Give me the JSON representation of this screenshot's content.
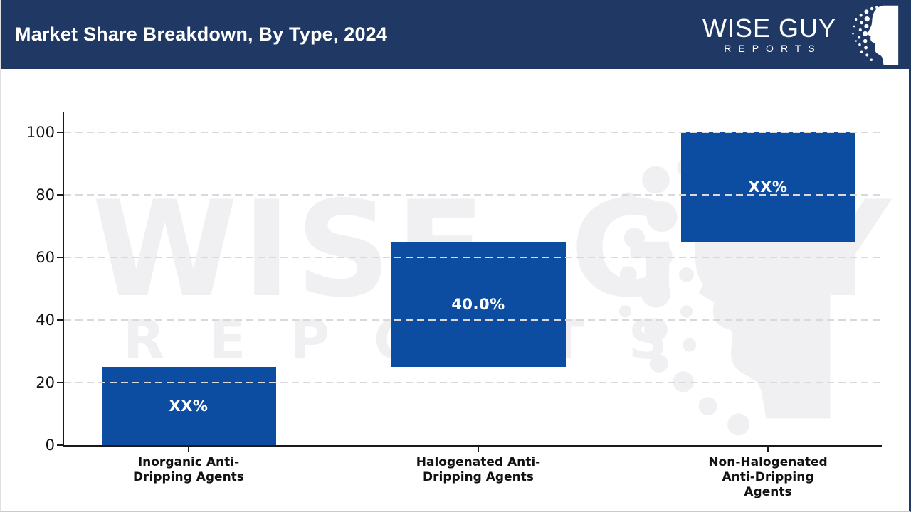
{
  "header": {
    "title": "Market Share Breakdown, By Type, 2024",
    "logo": {
      "line1": "WISE GUY",
      "line2": "REPORTS"
    }
  },
  "watermark": {
    "line1": "WISE GUY",
    "line2": "REPORTS"
  },
  "chart_data": {
    "type": "bar",
    "subtype": "floating-segment-waterfall",
    "title": "Market Share Breakdown, By Type, 2024",
    "categories": [
      "Inorganic Anti-\nDripping Agents",
      "Halogenated Anti-\nDripping Agents",
      "Non-Halogenated\nAnti-Dripping\nAgents"
    ],
    "segments": [
      {
        "category": "Inorganic Anti-Dripping Agents",
        "start": 0,
        "end": 25,
        "label": "XX%"
      },
      {
        "category": "Halogenated Anti-Dripping Agents",
        "start": 25,
        "end": 65,
        "label": "40.0%"
      },
      {
        "category": "Non-Halogenated Anti-Dripping Agents",
        "start": 65,
        "end": 100,
        "label": "XX%"
      }
    ],
    "ylim": [
      0,
      100
    ],
    "yticks": [
      0,
      20,
      40,
      60,
      80,
      100
    ],
    "xlabel": "",
    "ylabel": "",
    "grid": "dashed-horizontal",
    "legend": "none",
    "bar_color": "#0c4da2",
    "bar_label_color": "#ffffff"
  },
  "colors": {
    "header_bg": "#1f3864",
    "bar": "#0c4da2",
    "grid": "#d9d9d9",
    "axis": "#1a1a1a",
    "watermark": "#f0f0f3"
  }
}
